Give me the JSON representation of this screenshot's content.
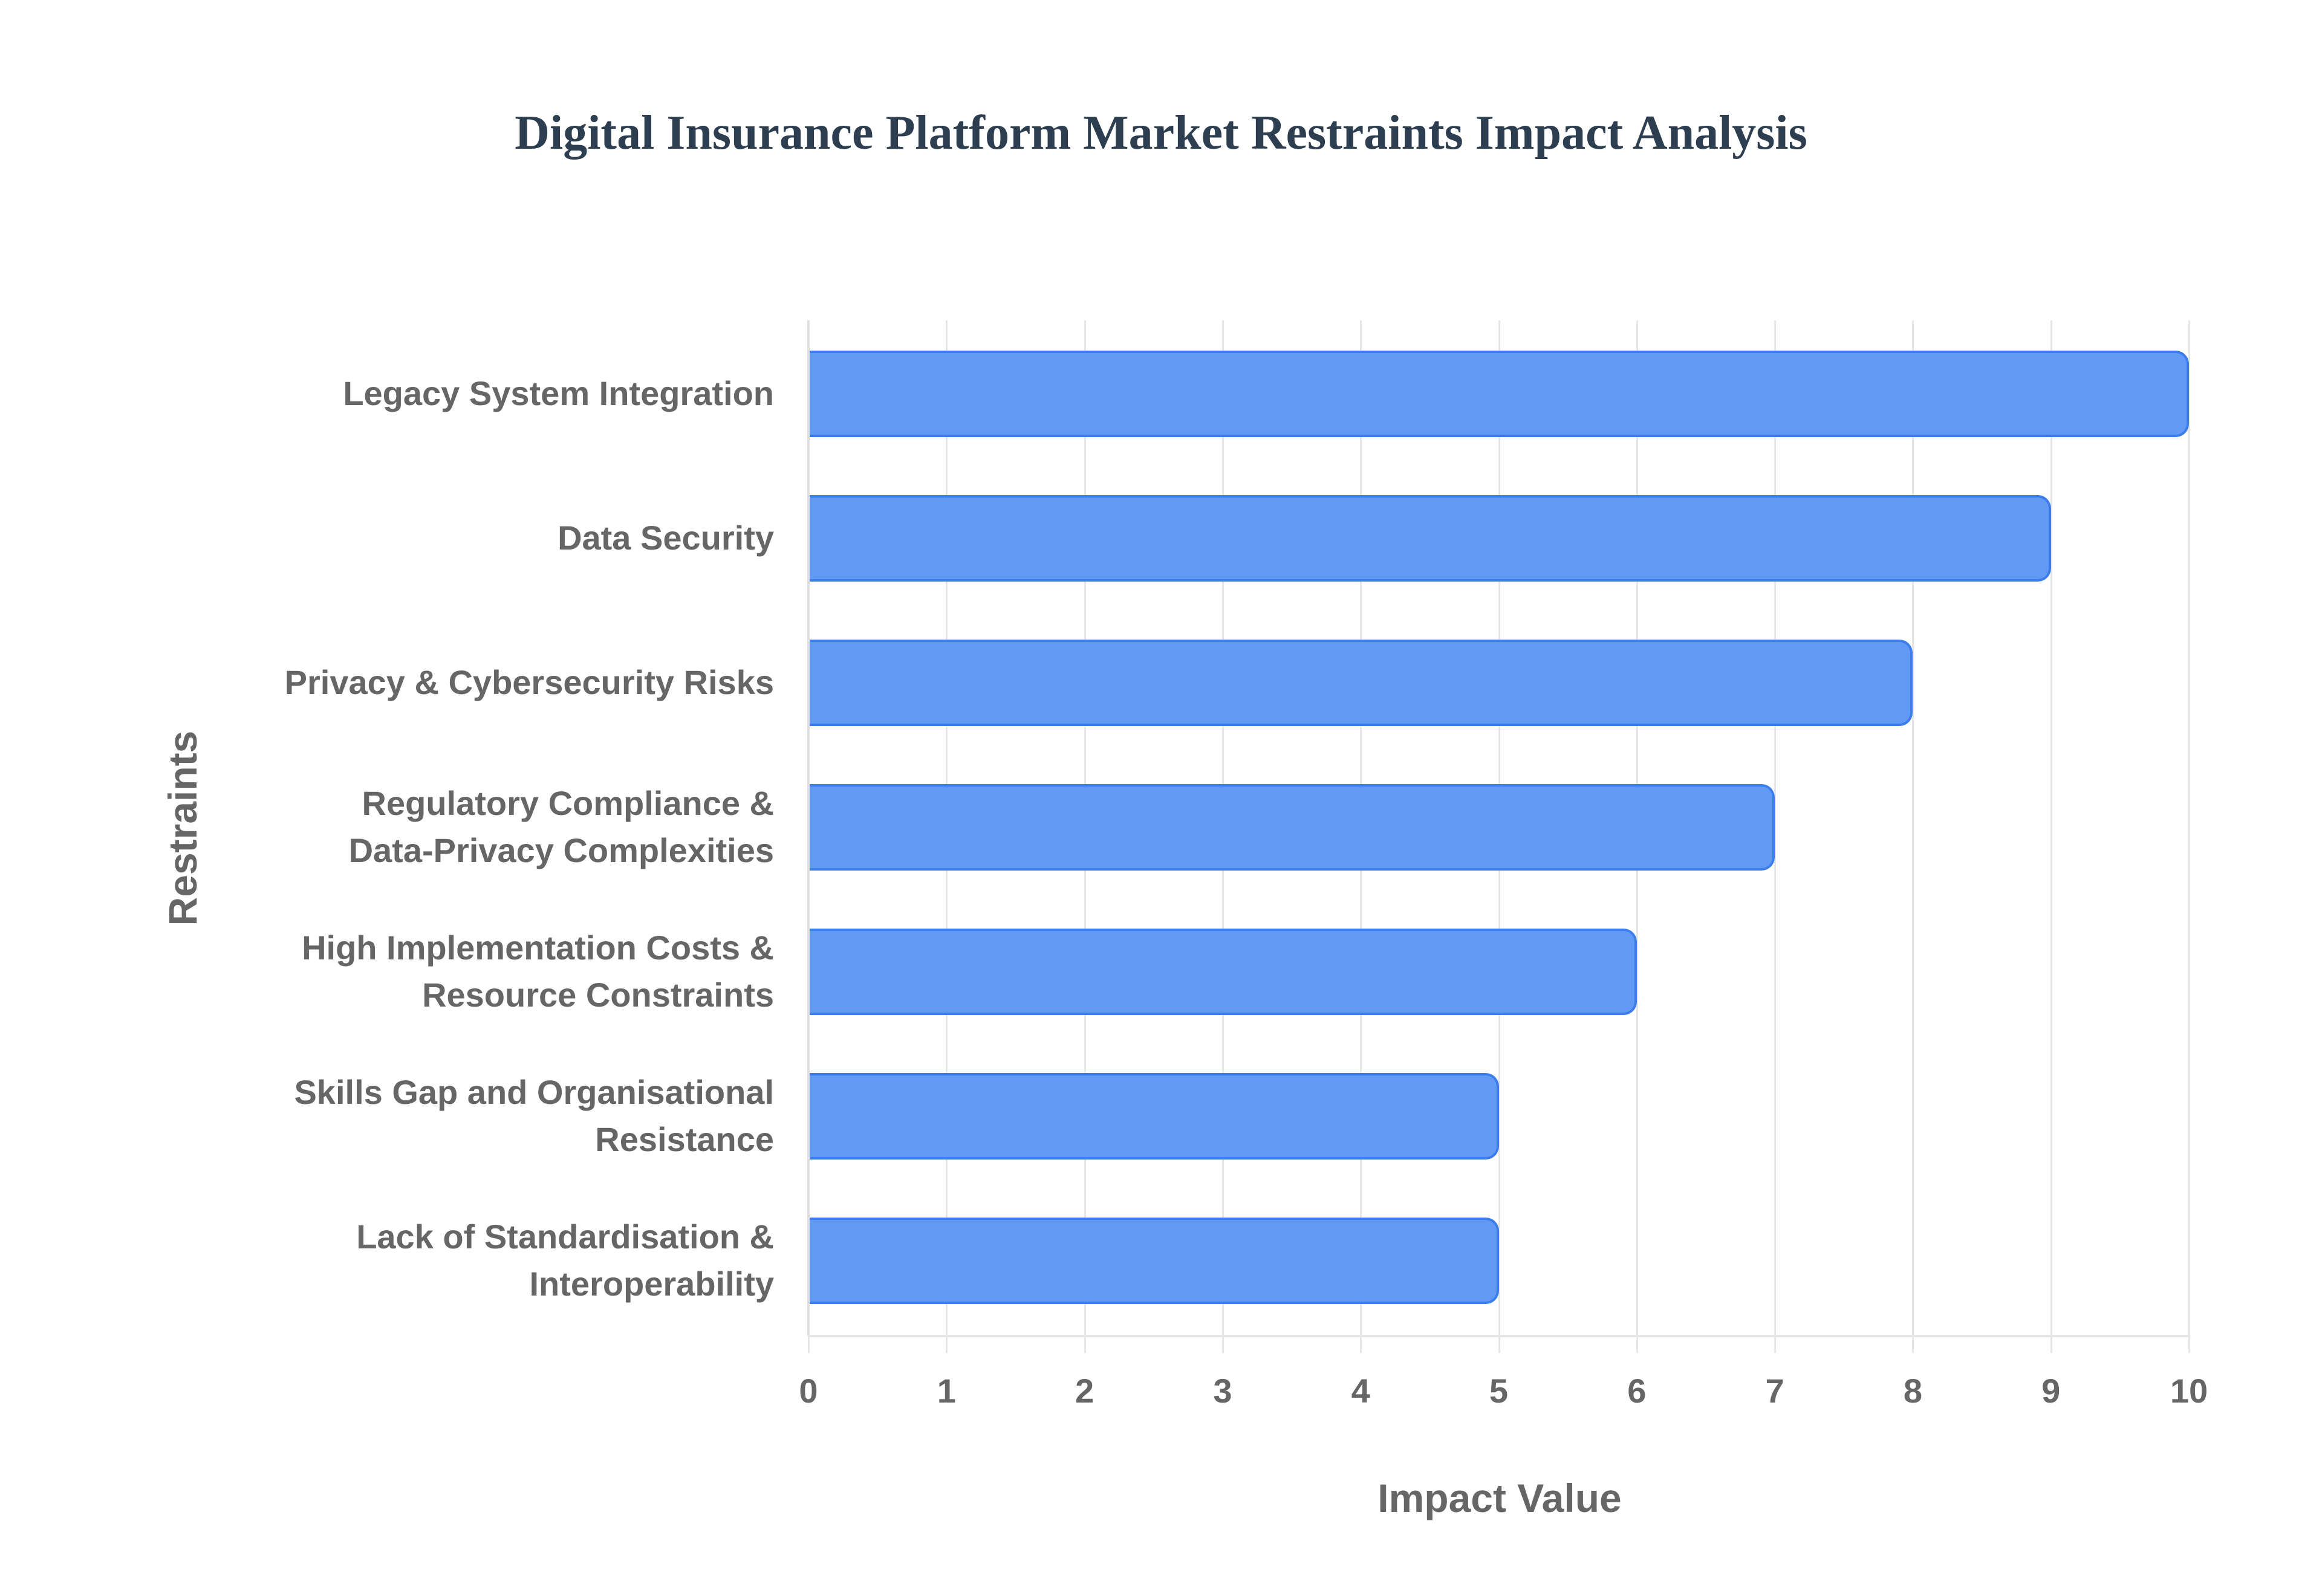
{
  "title": "Digital Insurance Platform Market Restraints Impact Analysis",
  "x_axis": {
    "label": "Impact Value",
    "ticks": [
      "0",
      "1",
      "2",
      "3",
      "4",
      "5",
      "6",
      "7",
      "8",
      "9",
      "10"
    ]
  },
  "y_axis": {
    "label": "Restraints"
  },
  "colors": {
    "bar_fill": "#6199f4",
    "bar_border": "#3b7ded",
    "title": "#2c3e50",
    "axis_text": "#666666",
    "grid": "#e6e6e6"
  },
  "categories": [
    "Legacy System Integration",
    "Data Security",
    "Privacy & Cybersecurity Risks",
    "Regulatory Compliance &\nData-Privacy Complexities",
    "High Implementation Costs &\nResource Constraints",
    "Skills Gap and Organisational\nResistance",
    "Lack of Standardisation &\nInteroperability"
  ],
  "chart_data": {
    "type": "bar",
    "orientation": "horizontal",
    "title": "Digital Insurance Platform Market Restraints Impact Analysis",
    "xlabel": "Impact Value",
    "ylabel": "Restraints",
    "xlim": [
      0,
      10
    ],
    "grid": true,
    "legend": null,
    "categories": [
      "Legacy System Integration",
      "Data Security",
      "Privacy & Cybersecurity Risks",
      "Regulatory Compliance & Data-Privacy Complexities",
      "High Implementation Costs & Resource Constraints",
      "Skills Gap and Organisational Resistance",
      "Lack of Standardisation & Interoperability"
    ],
    "values": [
      10,
      9,
      8,
      7,
      6,
      5,
      5
    ]
  }
}
